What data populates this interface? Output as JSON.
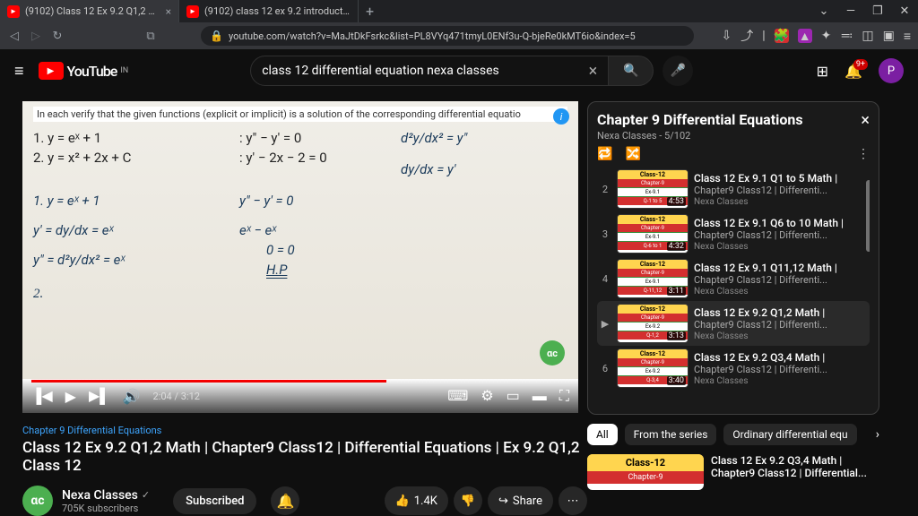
{
  "browser": {
    "tabs": [
      {
        "title": "(9102) Class 12 Ex 9.2 Q1,2 Math |",
        "active": true
      },
      {
        "title": "(9102) class 12 ex 9.2 introduction - Y",
        "active": false
      }
    ],
    "url": "youtube.com/watch?v=MaJtDkFsrkc&list=PL8VYq471tmyL0ENf3u-Q-bjeRe0kMT6io&index=5"
  },
  "youtube": {
    "logo_text": "YouTube",
    "country": "IN",
    "search_query": "class 12 differential equation nexa classes",
    "notif_count": "9+",
    "avatar_letter": "P"
  },
  "video": {
    "problem_header": "In each verify that the given functions (explicit or implicit) is a solution of the corresponding differential equatio",
    "line1": "1.   y = eˣ + 1",
    "line1b": ":    y″ − y′ = 0",
    "line2": "2.   y = x² + 2x + C",
    "line2b": ":    y′ − 2x − 2 = 0",
    "hw1": "1.   y = eˣ + 1",
    "hw1b": "y″ − y′ = 0",
    "deriv1": "y′ = dy/dx = eˣ",
    "deriv2": "eˣ − eˣ",
    "deriv3": "0 = 0",
    "deriv4": "y″ = d²y/dx² = eˣ",
    "hp": "H.P",
    "side1": "d²y/dx² = y″",
    "side2": "dy/dx = y′",
    "time_current": "2:04",
    "time_total": "3:12",
    "playlist_link": "Chapter 9 Differential Equations",
    "title": "Class 12 Ex 9.2 Q1,2 Math | Chapter9 Class12 | Differential Equations | Ex 9.2 Q1,2 Class 12",
    "channel": "Nexa Classes",
    "subs": "705K subscribers",
    "subscribed_label": "Subscribed",
    "likes": "1.4K",
    "share_label": "Share"
  },
  "playlist": {
    "title": "Chapter 9 Differential Equations",
    "owner": "Nexa Classes",
    "position": "5/102",
    "items": [
      {
        "idx": "2",
        "title": "Class 12 Ex 9.1 Q1 to 5 Math |",
        "sub": "Chapter9 Class12 | Differenti...",
        "owner": "Nexa Classes",
        "dur": "4:53",
        "ex": "Ex-9.1",
        "q": "Q-1 to 5"
      },
      {
        "idx": "3",
        "title": "Class 12 Ex 9.1 Q6 to 10 Math |",
        "sub": "Chapter9 Class12 | Differenti...",
        "owner": "Nexa Classes",
        "dur": "4:32",
        "ex": "Ex-9.1",
        "q": "Q-6 to 1"
      },
      {
        "idx": "4",
        "title": "Class 12 Ex 9.1 Q11,12 Math |",
        "sub": "Chapter9 Class12 | Differenti...",
        "owner": "Nexa Classes",
        "dur": "3:11",
        "ex": "Ex-9.1",
        "q": "Q-11,12"
      },
      {
        "idx": "▶",
        "title": "Class 12 Ex 9.2 Q1,2 Math |",
        "sub": "Chapter9 Class12 | Differenti...",
        "owner": "Nexa Classes",
        "dur": "3:13",
        "ex": "Ex-9.2",
        "q": "Q-1,2",
        "active": true
      },
      {
        "idx": "6",
        "title": "Class 12 Ex 9.2 Q3,4 Math |",
        "sub": "Chapter9 Class12 | Differenti...",
        "owner": "Nexa Classes",
        "dur": "3:40",
        "ex": "Ex-9.2",
        "q": "Q-3,4"
      }
    ]
  },
  "chips": [
    "All",
    "From the series",
    "Ordinary differential equ"
  ],
  "recommend": {
    "title": "Class 12 Ex 9.2 Q3,4 Math |",
    "sub": "Chapter9 Class12 | Differential...",
    "thumb_class": "Class-12",
    "thumb_ch": "Chapter-9"
  }
}
